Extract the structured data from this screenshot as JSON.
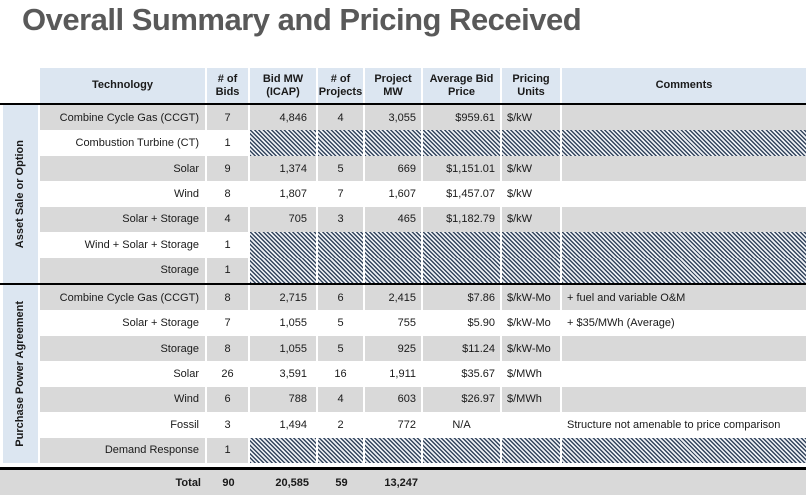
{
  "title": "Overall Summary and Pricing Received",
  "colors": {
    "header_bg": "#dce6f1",
    "row_gray": "#d9d9d9",
    "hatch_dark": "#35465e",
    "rule_black": "#000000",
    "title_gray": "#595959"
  },
  "table": {
    "headers": [
      "Technology",
      "# of Bids",
      "Bid MW (ICAP)",
      "# of Projects",
      "Project MW",
      "Average Bid Price",
      "Pricing Units",
      "Comments"
    ],
    "sections": [
      {
        "label": "Asset Sale or Option",
        "rows": [
          {
            "technology": "Combine Cycle Gas (CCGT)",
            "bids": "7",
            "bid_mw": "4,846",
            "projects": "4",
            "project_mw": "3,055",
            "avg_price": "$959.61",
            "units": "$/kW",
            "comment": "",
            "hatched": false
          },
          {
            "technology": "Combustion Turbine (CT)",
            "bids": "1",
            "bid_mw": "",
            "projects": "",
            "project_mw": "",
            "avg_price": "",
            "units": "",
            "comment": "",
            "hatched": true
          },
          {
            "technology": "Solar",
            "bids": "9",
            "bid_mw": "1,374",
            "projects": "5",
            "project_mw": "669",
            "avg_price": "$1,151.01",
            "units": "$/kW",
            "comment": "",
            "hatched": false
          },
          {
            "technology": "Wind",
            "bids": "8",
            "bid_mw": "1,807",
            "projects": "7",
            "project_mw": "1,607",
            "avg_price": "$1,457.07",
            "units": "$/kW",
            "comment": "",
            "hatched": false
          },
          {
            "technology": "Solar + Storage",
            "bids": "4",
            "bid_mw": "705",
            "projects": "3",
            "project_mw": "465",
            "avg_price": "$1,182.79",
            "units": "$/kW",
            "comment": "",
            "hatched": false
          },
          {
            "technology": "Wind + Solar + Storage",
            "bids": "1",
            "bid_mw": "",
            "projects": "",
            "project_mw": "",
            "avg_price": "",
            "units": "",
            "comment": "",
            "hatched": true
          },
          {
            "technology": "Storage",
            "bids": "1",
            "bid_mw": "",
            "projects": "",
            "project_mw": "",
            "avg_price": "",
            "units": "",
            "comment": "",
            "hatched": true
          }
        ]
      },
      {
        "label": "Purchase Power Agreement",
        "rows": [
          {
            "technology": "Combine Cycle Gas (CCGT)",
            "bids": "8",
            "bid_mw": "2,715",
            "projects": "6",
            "project_mw": "2,415",
            "avg_price": "$7.86",
            "units": "$/kW-Mo",
            "comment": "+ fuel and variable O&M",
            "hatched": false
          },
          {
            "technology": "Solar + Storage",
            "bids": "7",
            "bid_mw": "1,055",
            "projects": "5",
            "project_mw": "755",
            "avg_price": "$5.90",
            "units": "$/kW-Mo",
            "comment": "+ $35/MWh (Average)",
            "hatched": false
          },
          {
            "technology": "Storage",
            "bids": "8",
            "bid_mw": "1,055",
            "projects": "5",
            "project_mw": "925",
            "avg_price": "$11.24",
            "units": "$/kW-Mo",
            "comment": "",
            "hatched": false
          },
          {
            "technology": "Solar",
            "bids": "26",
            "bid_mw": "3,591",
            "projects": "16",
            "project_mw": "1,911",
            "avg_price": "$35.67",
            "units": "$/MWh",
            "comment": "",
            "hatched": false
          },
          {
            "technology": "Wind",
            "bids": "6",
            "bid_mw": "788",
            "projects": "4",
            "project_mw": "603",
            "avg_price": "$26.97",
            "units": "$/MWh",
            "comment": "",
            "hatched": false
          },
          {
            "technology": "Fossil",
            "bids": "3",
            "bid_mw": "1,494",
            "projects": "2",
            "project_mw": "772",
            "avg_price": "N/A",
            "units": "",
            "comment": "Structure not amenable to price comparison",
            "hatched": false
          },
          {
            "technology": "Demand Response",
            "bids": "1",
            "bid_mw": "",
            "projects": "",
            "project_mw": "",
            "avg_price": "",
            "units": "",
            "comment": "",
            "hatched": true
          }
        ]
      }
    ],
    "total": {
      "label": "Total",
      "bids": "90",
      "bid_mw": "20,585",
      "projects": "59",
      "project_mw": "13,247"
    }
  }
}
